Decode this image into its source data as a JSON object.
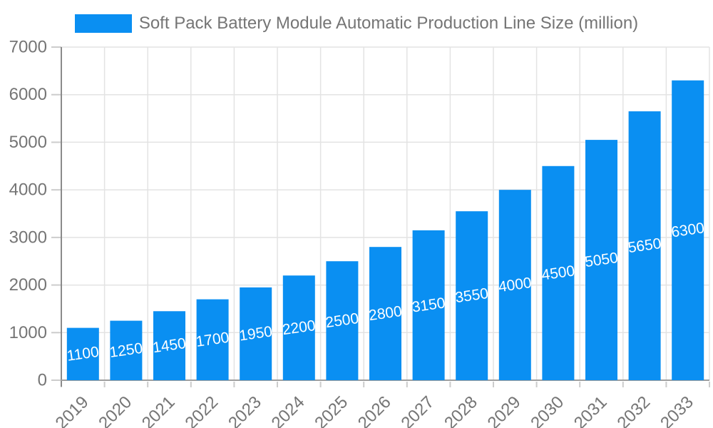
{
  "legend": {
    "label": "Soft Pack Battery Module Automatic Production Line Size (million)"
  },
  "colors": {
    "bar": "#0a8ff2",
    "grid": "#e3e3e3",
    "tick": "#cccccc",
    "axis_line": "#9e9e9e",
    "y_axis_line": "#8a8a8a",
    "text": "#757575",
    "value_label": "#ffffff",
    "background": "#ffffff"
  },
  "chart_data": {
    "type": "bar",
    "title": "Soft Pack Battery Module Automatic Production Line Size (million)",
    "xlabel": "",
    "ylabel": "",
    "categories": [
      "2019",
      "2020",
      "2021",
      "2022",
      "2023",
      "2024",
      "2025",
      "2026",
      "2027",
      "2028",
      "2029",
      "2030",
      "2031",
      "2032",
      "2033"
    ],
    "series": [
      {
        "name": "Soft Pack Battery Module Automatic Production Line Size (million)",
        "values": [
          1100,
          1250,
          1450,
          1700,
          1950,
          2200,
          2500,
          2800,
          3150,
          3550,
          4000,
          4500,
          5050,
          5650,
          6300
        ]
      }
    ],
    "bar_value_labels": [
      "1100",
      "1250",
      "1450",
      "1700",
      "1950",
      "2200",
      "2500",
      "2800",
      "3150",
      "3550",
      "4000",
      "4500",
      "5050",
      "5650",
      "6300"
    ],
    "ylim": [
      0,
      7000
    ],
    "y_ticks": [
      0,
      1000,
      2000,
      3000,
      4000,
      5000,
      6000,
      7000
    ],
    "y_tick_labels": [
      "0",
      "1000",
      "2000",
      "3000",
      "4000",
      "5000",
      "6000",
      "7000"
    ],
    "grid": true,
    "legend_position": "top-center",
    "x_label_rotation_deg": -45,
    "bar_label_rotation_deg": -8
  }
}
